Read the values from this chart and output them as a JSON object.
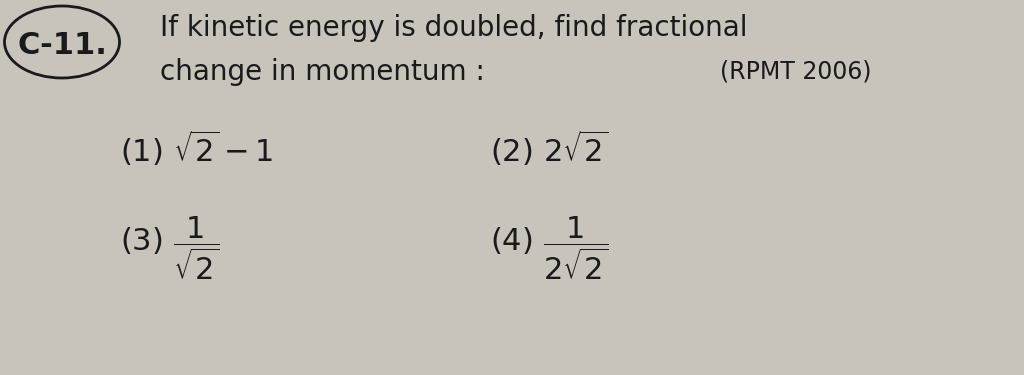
{
  "bg_color": "#c8c3bb",
  "text_color": "#1a1a1a",
  "question_number": "C-11.",
  "question_text_line1": "If kinetic energy is doubled, find fractional",
  "question_text_line2": "change in momentum :",
  "source": "(RPMT 2006)",
  "font_size_question": 20,
  "font_size_options": 22,
  "font_size_source": 17,
  "figwidth": 10.24,
  "figheight": 3.75,
  "dpi": 100
}
